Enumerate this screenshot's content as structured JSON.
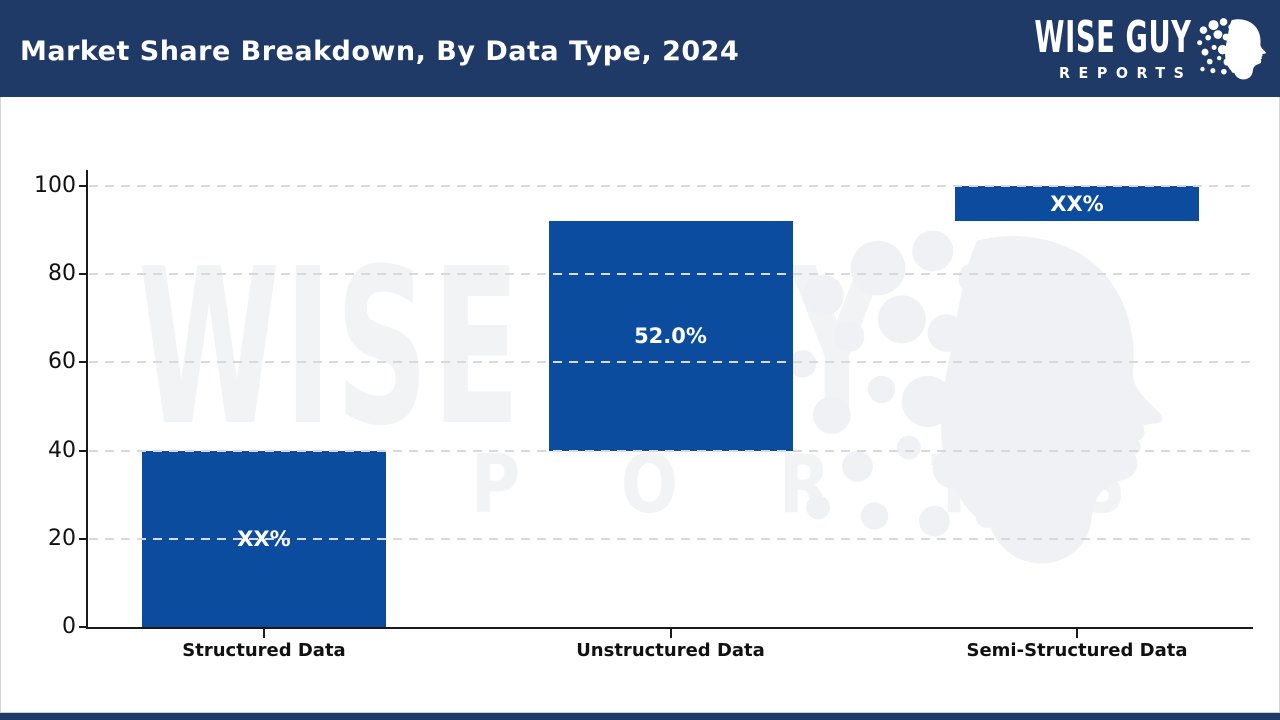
{
  "header": {
    "title": "Market Share Breakdown, By Data Type, 2024",
    "bg_color": "#203a68",
    "logo": {
      "wordmark": "WISE GUY",
      "subtext": "REPORTS"
    }
  },
  "watermark": {
    "wordmark": "WISE GUY",
    "subtext": "R E P O R T S"
  },
  "chart_data": {
    "type": "bar",
    "subtype": "waterfall",
    "title": "Market Share Breakdown, By Data Type, 2024",
    "categories": [
      "Structured Data",
      "Unstructured Data",
      "Semi-Structured Data"
    ],
    "segments": [
      {
        "category": "Structured Data",
        "start": 0,
        "end": 40,
        "label": "XX%"
      },
      {
        "category": "Unstructured Data",
        "start": 40,
        "end": 92,
        "label": "52.0%"
      },
      {
        "category": "Semi-Structured Data",
        "start": 92,
        "end": 100,
        "label": "XX%"
      }
    ],
    "yticks": [
      0,
      20,
      40,
      60,
      80,
      100
    ],
    "ylim": [
      0,
      100
    ],
    "xlabel": "",
    "ylabel": "",
    "grid": "horizontal-dashed",
    "legend": "none",
    "bar_color": "#0c4c9e",
    "bar_label_color": "#ffffff",
    "axis_color": "#1a1a1a",
    "gridline_color": "#d9d9d9"
  }
}
